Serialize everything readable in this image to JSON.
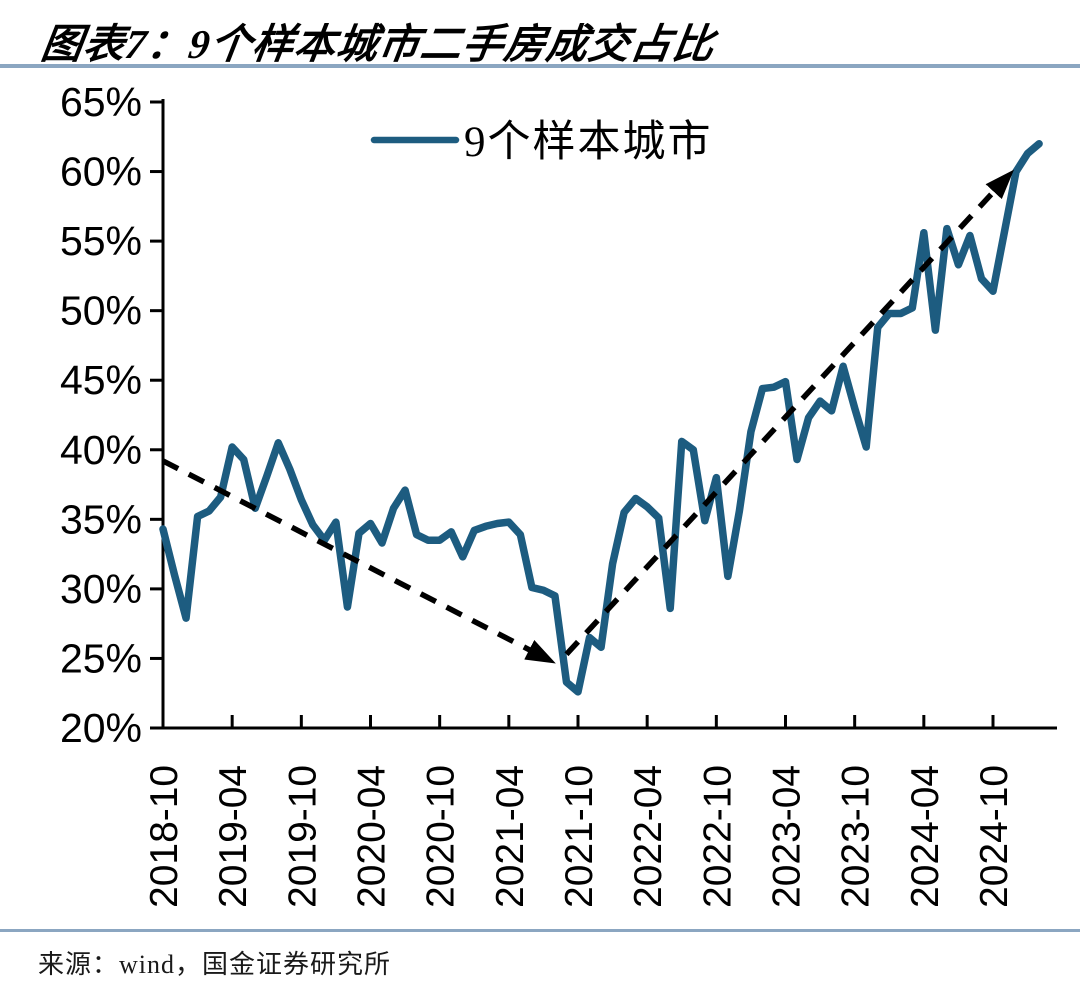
{
  "figure": {
    "title": "图表7：9个样本城市二手房成交占比",
    "source_note": "来源：wind，国金证券研究所"
  },
  "colors": {
    "series": "#1d5c80",
    "divider": "#8ba6c1",
    "axis": "#000000",
    "trend_arrow": "#000000",
    "background": "#ffffff"
  },
  "chart_data": {
    "type": "line",
    "title": "9个样本城市二手房成交占比",
    "legend": [
      {
        "label": "9个样本城市",
        "color": "#1d5c80",
        "position": "top-center"
      }
    ],
    "grid": "off",
    "ylim": [
      20,
      65
    ],
    "y_ticks": [
      20,
      25,
      30,
      35,
      40,
      45,
      50,
      55,
      60,
      65
    ],
    "y_suffix": "%",
    "x_tick_labels": [
      "2018-10",
      "2019-04",
      "2019-10",
      "2020-04",
      "2020-10",
      "2021-04",
      "2021-10",
      "2022-04",
      "2022-10",
      "2023-04",
      "2023-10",
      "2024-04",
      "2024-10"
    ],
    "x": [
      "2018-10",
      "2018-11",
      "2018-12",
      "2019-01",
      "2019-02",
      "2019-03",
      "2019-04",
      "2019-05",
      "2019-06",
      "2019-07",
      "2019-08",
      "2019-09",
      "2019-10",
      "2019-11",
      "2019-12",
      "2020-01",
      "2020-02",
      "2020-03",
      "2020-04",
      "2020-05",
      "2020-06",
      "2020-07",
      "2020-08",
      "2020-09",
      "2020-10",
      "2020-11",
      "2020-12",
      "2021-01",
      "2021-02",
      "2021-03",
      "2021-04",
      "2021-05",
      "2021-06",
      "2021-07",
      "2021-08",
      "2021-09",
      "2021-10",
      "2021-11",
      "2021-12",
      "2022-01",
      "2022-02",
      "2022-03",
      "2022-04",
      "2022-05",
      "2022-06",
      "2022-07",
      "2022-08",
      "2022-09",
      "2022-10",
      "2022-11",
      "2022-12",
      "2023-01",
      "2023-02",
      "2023-03",
      "2023-04",
      "2023-05",
      "2023-06",
      "2023-07",
      "2023-08",
      "2023-09",
      "2023-10",
      "2023-11",
      "2023-12",
      "2024-01",
      "2024-02",
      "2024-03",
      "2024-04",
      "2024-05",
      "2024-06",
      "2024-07",
      "2024-08",
      "2024-09",
      "2024-10",
      "2024-11",
      "2024-12",
      "2025-01",
      "2025-02"
    ],
    "series": [
      {
        "name": "9个样本城市",
        "color": "#1d5c80",
        "values": [
          34.3,
          31.0,
          27.9,
          35.2,
          35.6,
          36.6,
          40.2,
          39.3,
          35.8,
          38.1,
          40.5,
          38.6,
          36.4,
          34.6,
          33.5,
          34.8,
          28.7,
          34.0,
          34.7,
          33.3,
          35.8,
          37.1,
          33.9,
          33.5,
          33.5,
          34.1,
          32.3,
          34.2,
          34.5,
          34.7,
          34.8,
          33.9,
          30.1,
          29.9,
          29.5,
          23.3,
          22.6,
          26.5,
          25.8,
          31.8,
          35.5,
          36.5,
          35.9,
          35.1,
          28.6,
          40.6,
          40.0,
          34.9,
          38.0,
          30.9,
          35.6,
          41.3,
          44.4,
          44.5,
          44.9,
          39.3,
          42.3,
          43.5,
          42.8,
          46.0,
          43.0,
          40.2,
          48.8,
          49.8,
          49.8,
          50.2,
          55.6,
          48.6,
          55.9,
          53.3,
          55.4,
          52.3,
          51.4,
          55.7,
          60.0,
          61.3,
          62.0
        ]
      }
    ],
    "annotations": [
      {
        "type": "arrow",
        "style": "dashed",
        "direction": "down",
        "from_month": "2018-10",
        "from_value": 39.2,
        "to_month": "2021-07",
        "to_value": 25.1
      },
      {
        "type": "arrow",
        "style": "dashed",
        "direction": "up",
        "from_month": "2021-09",
        "from_value": 25.3,
        "to_month": "2024-11",
        "to_value": 59.4
      }
    ]
  }
}
